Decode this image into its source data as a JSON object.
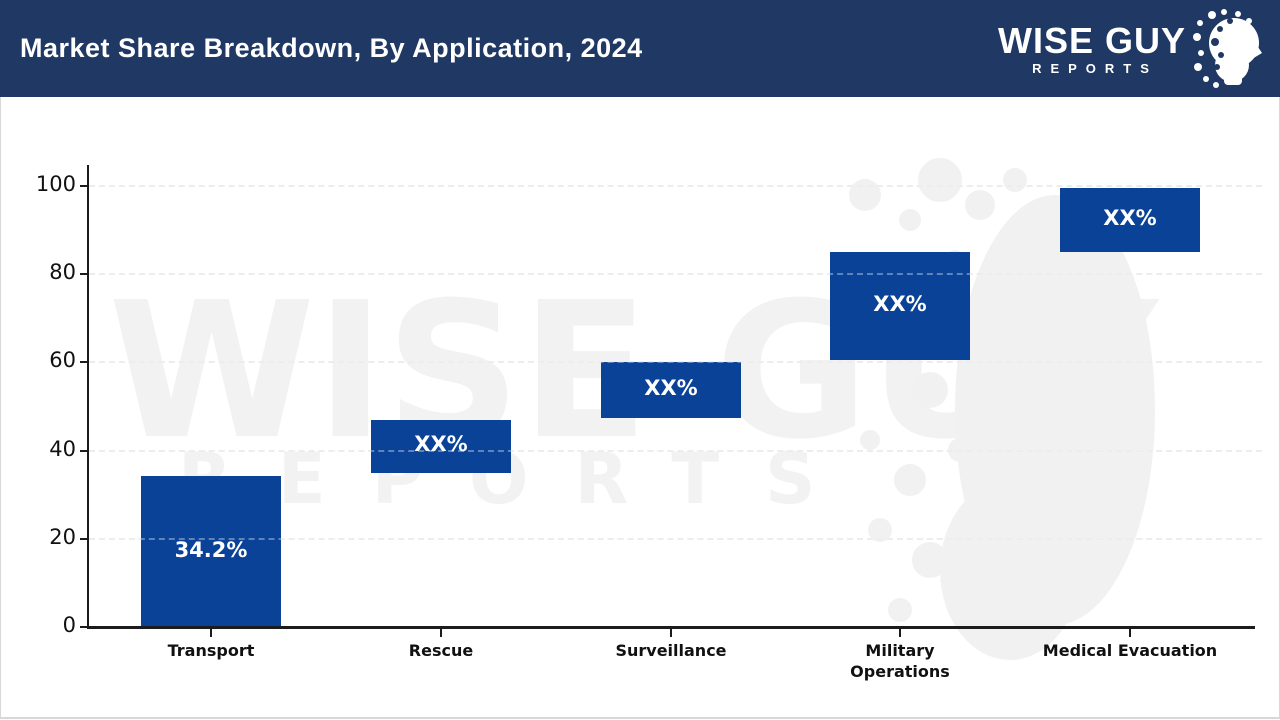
{
  "header": {
    "title": "Market Share Breakdown, By Application, 2024",
    "logo": {
      "line1": "WISE GUY",
      "line2": "REPORTS"
    }
  },
  "watermark": {
    "line1": "WISE GUY",
    "line2": "REPORTS"
  },
  "chart_data": {
    "type": "bar",
    "subtype": "waterfall-floating-bars",
    "title": "Market Share Breakdown, By Application, 2024",
    "categories": [
      "Transport",
      "Rescue",
      "Surveillance",
      "Military\nOperations",
      "Medical Evacuation"
    ],
    "segments": [
      {
        "category": "Transport",
        "start": 0,
        "end": 34.2,
        "label": "34.2%"
      },
      {
        "category": "Rescue",
        "start": 35,
        "end": 47,
        "label": "XX%"
      },
      {
        "category": "Surveillance",
        "start": 47.5,
        "end": 60,
        "label": "XX%"
      },
      {
        "category": "Military Operations",
        "start": 60.5,
        "end": 85,
        "label": "XX%"
      },
      {
        "category": "Medical Evacuation",
        "start": 85,
        "end": 99.5,
        "label": "XX%"
      }
    ],
    "yticks": [
      0,
      20,
      40,
      60,
      80,
      100
    ],
    "ylim": [
      0,
      105
    ],
    "xlabel": "",
    "ylabel": "",
    "grid": "horizontal-dashed",
    "legend": "none",
    "bar_color": "#0a4297",
    "bar_label_color": "#ffffff"
  },
  "colors": {
    "header_bg": "#1f3864",
    "bar": "#0a4297",
    "axis": "#1c1c1c",
    "gridline": "#e4e4e4",
    "watermark": "#f2f2f2"
  }
}
